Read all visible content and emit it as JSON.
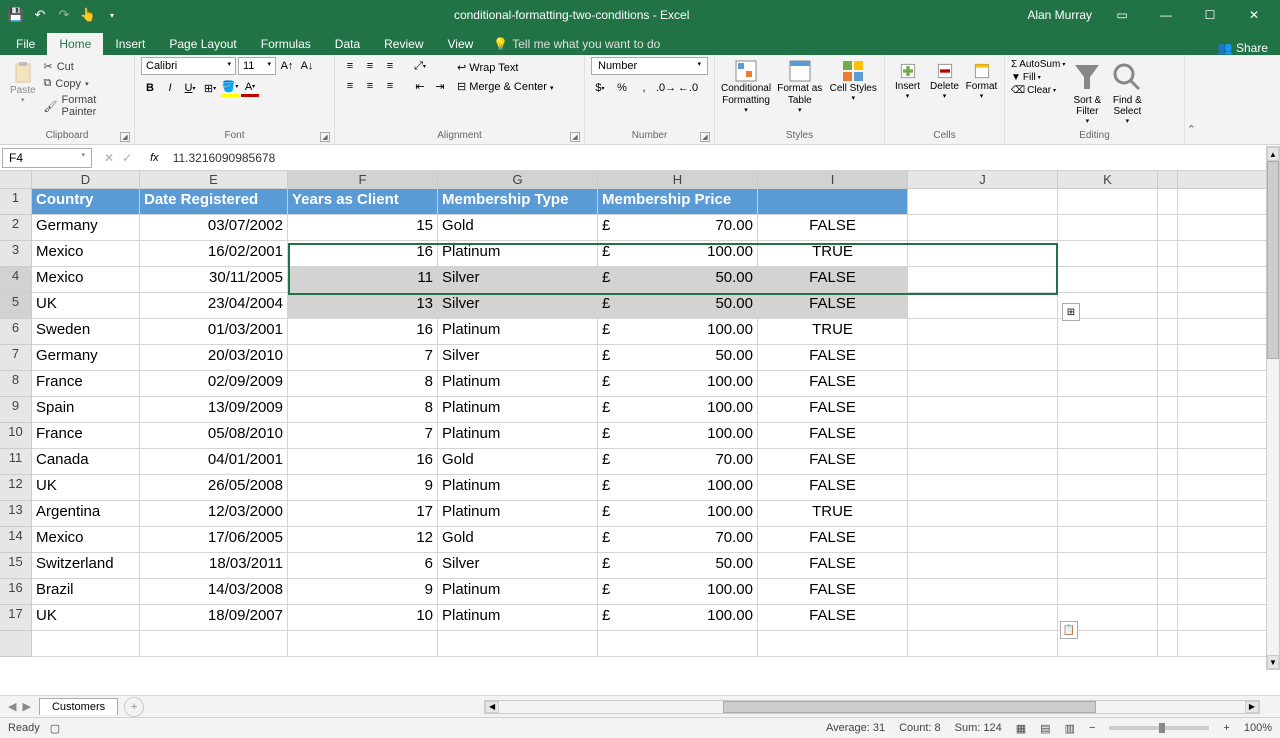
{
  "app": {
    "title": "conditional-formatting-two-conditions - Excel",
    "user": "Alan Murray"
  },
  "tabs": {
    "file": "File",
    "home": "Home",
    "insert": "Insert",
    "pageLayout": "Page Layout",
    "formulas": "Formulas",
    "data": "Data",
    "review": "Review",
    "view": "View",
    "tellMe": "Tell me what you want to do",
    "share": "Share"
  },
  "ribbon": {
    "clipboard": {
      "label": "Clipboard",
      "paste": "Paste",
      "cut": "Cut",
      "copy": "Copy",
      "formatPainter": "Format Painter"
    },
    "font": {
      "label": "Font",
      "name": "Calibri",
      "size": "11"
    },
    "alignment": {
      "label": "Alignment",
      "wrapText": "Wrap Text",
      "mergeCenter": "Merge & Center"
    },
    "number": {
      "label": "Number",
      "format": "Number"
    },
    "styles": {
      "label": "Styles",
      "conditional": "Conditional Formatting",
      "formatTable": "Format as Table",
      "cellStyles": "Cell Styles"
    },
    "cells": {
      "label": "Cells",
      "insert": "Insert",
      "delete": "Delete",
      "format": "Format"
    },
    "editing": {
      "label": "Editing",
      "autoSum": "AutoSum",
      "fill": "Fill",
      "clear": "Clear",
      "sortFilter": "Sort & Filter",
      "findSelect": "Find & Select"
    }
  },
  "formulaBar": {
    "nameBox": "F4",
    "formula": "11.3216090985678"
  },
  "columns": [
    "D",
    "E",
    "F",
    "G",
    "H",
    "I",
    "J",
    "K"
  ],
  "headers": {
    "country": "Country",
    "date": "Date Registered",
    "years": "Years as Client",
    "type": "Membership Type",
    "price": "Membership Price"
  },
  "currency": "£",
  "rows": [
    {
      "n": 2,
      "c": "Germany",
      "d": "03/07/2002",
      "y": 15,
      "t": "Gold",
      "p": "70.00",
      "b": "FALSE"
    },
    {
      "n": 3,
      "c": "Mexico",
      "d": "16/02/2001",
      "y": 16,
      "t": "Platinum",
      "p": "100.00",
      "b": "TRUE"
    },
    {
      "n": 4,
      "c": "Mexico",
      "d": "30/11/2005",
      "y": 11,
      "t": "Silver",
      "p": "50.00",
      "b": "FALSE",
      "sel": true
    },
    {
      "n": 5,
      "c": "UK",
      "d": "23/04/2004",
      "y": 13,
      "t": "Silver",
      "p": "50.00",
      "b": "FALSE",
      "sel": true
    },
    {
      "n": 6,
      "c": "Sweden",
      "d": "01/03/2001",
      "y": 16,
      "t": "Platinum",
      "p": "100.00",
      "b": "TRUE"
    },
    {
      "n": 7,
      "c": "Germany",
      "d": "20/03/2010",
      "y": 7,
      "t": "Silver",
      "p": "50.00",
      "b": "FALSE"
    },
    {
      "n": 8,
      "c": "France",
      "d": "02/09/2009",
      "y": 8,
      "t": "Platinum",
      "p": "100.00",
      "b": "FALSE"
    },
    {
      "n": 9,
      "c": "Spain",
      "d": "13/09/2009",
      "y": 8,
      "t": "Platinum",
      "p": "100.00",
      "b": "FALSE"
    },
    {
      "n": 10,
      "c": "France",
      "d": "05/08/2010",
      "y": 7,
      "t": "Platinum",
      "p": "100.00",
      "b": "FALSE"
    },
    {
      "n": 11,
      "c": "Canada",
      "d": "04/01/2001",
      "y": 16,
      "t": "Gold",
      "p": "70.00",
      "b": "FALSE"
    },
    {
      "n": 12,
      "c": "UK",
      "d": "26/05/2008",
      "y": 9,
      "t": "Platinum",
      "p": "100.00",
      "b": "FALSE"
    },
    {
      "n": 13,
      "c": "Argentina",
      "d": "12/03/2000",
      "y": 17,
      "t": "Platinum",
      "p": "100.00",
      "b": "TRUE"
    },
    {
      "n": 14,
      "c": "Mexico",
      "d": "17/06/2005",
      "y": 12,
      "t": "Gold",
      "p": "70.00",
      "b": "FALSE"
    },
    {
      "n": 15,
      "c": "Switzerland",
      "d": "18/03/2011",
      "y": 6,
      "t": "Silver",
      "p": "50.00",
      "b": "FALSE"
    },
    {
      "n": 16,
      "c": "Brazil",
      "d": "14/03/2008",
      "y": 9,
      "t": "Platinum",
      "p": "100.00",
      "b": "FALSE"
    },
    {
      "n": 17,
      "c": "UK",
      "d": "18/09/2007",
      "y": 10,
      "t": "Platinum",
      "p": "100.00",
      "b": "FALSE"
    }
  ],
  "sheetTab": "Customers",
  "status": {
    "ready": "Ready",
    "average": "Average: 31",
    "count": "Count: 8",
    "sum": "Sum: 124",
    "zoom": "100%"
  },
  "colors": {
    "excelGreen": "#217346",
    "headerBlue": "#5b9bd5",
    "ribbonBg": "#f3f3f3",
    "gridBorder": "#d4d4d4",
    "selection": "#d3d3d3"
  }
}
